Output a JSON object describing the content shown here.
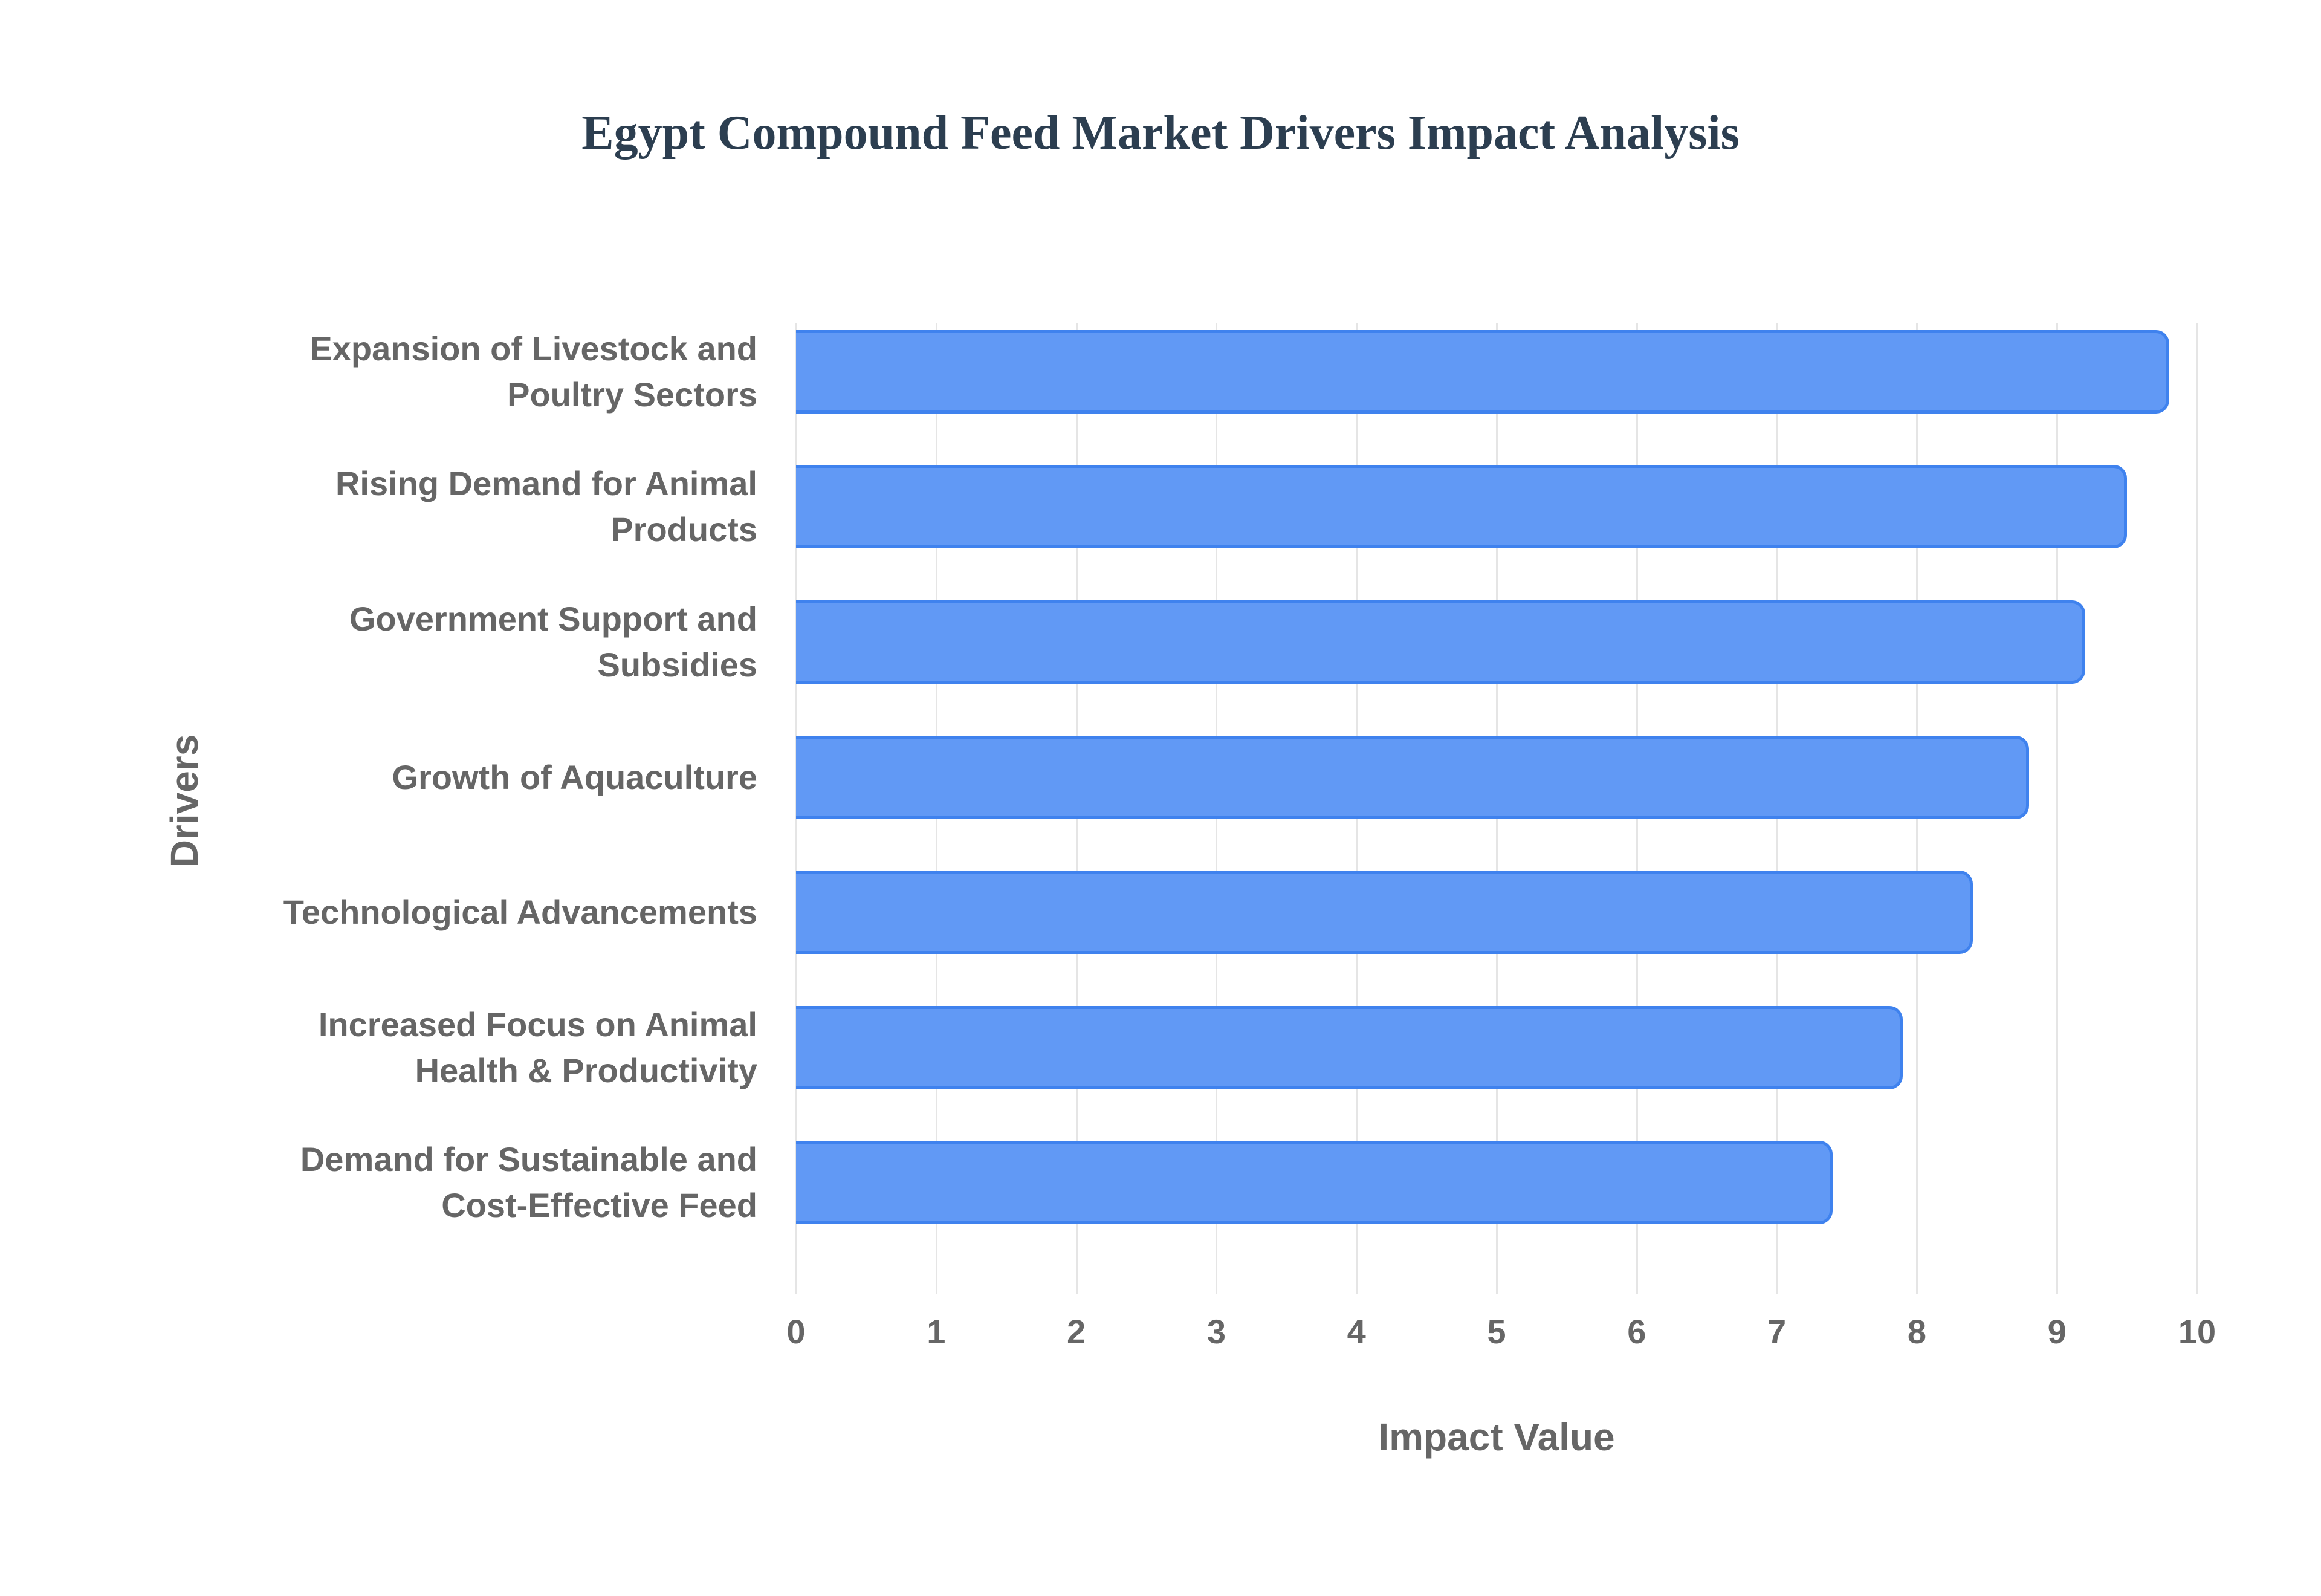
{
  "chart_data": {
    "type": "bar",
    "orientation": "horizontal",
    "title": "Egypt Compound Feed Market Drivers Impact Analysis",
    "xlabel": "Impact Value",
    "ylabel": "Drivers",
    "xlim": [
      0,
      10
    ],
    "x_ticks": [
      "0",
      "1",
      "2",
      "3",
      "4",
      "5",
      "6",
      "7",
      "8",
      "9",
      "10"
    ],
    "grid": true,
    "legend": "none",
    "categories": [
      "Expansion of Livestock and\nPoultry Sectors",
      "Rising Demand for Animal\nProducts",
      "Government Support and\nSubsidies",
      "Growth of Aquaculture",
      "Technological Advancements",
      "Increased Focus on Animal\nHealth & Productivity",
      "Demand for Sustainable and\nCost-Effective Feed"
    ],
    "values": [
      9.8,
      9.5,
      9.2,
      8.8,
      8.4,
      7.9,
      7.4
    ],
    "colors": {
      "bar_fill": "#6199f5",
      "bar_border": "#3f82ee",
      "title": "#2c3e50",
      "axis_text": "#666666",
      "grid": "#e5e5e5"
    }
  }
}
